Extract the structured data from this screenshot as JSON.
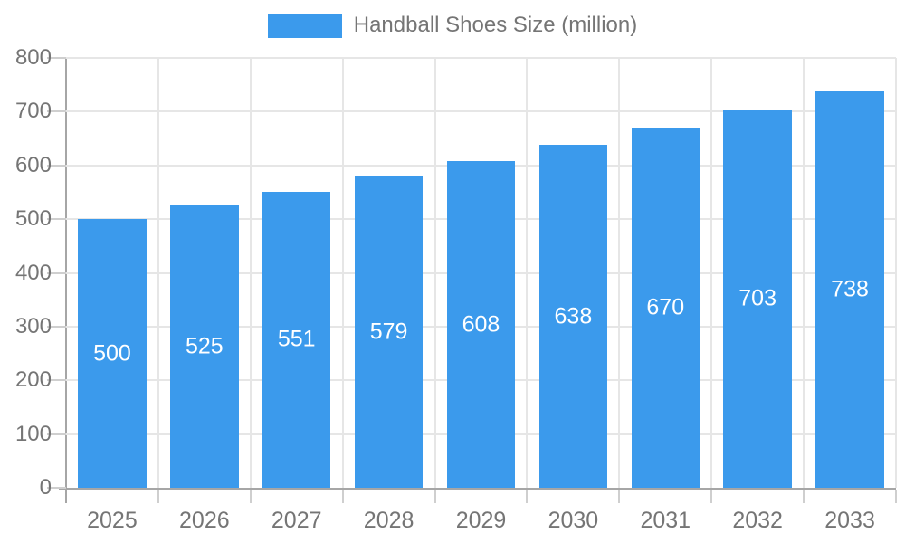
{
  "chart_data": {
    "type": "bar",
    "title": "Handball Shoes Size (million)",
    "legend": {
      "label": "Handball Shoes Size (million)",
      "position": "top"
    },
    "categories": [
      "2025",
      "2026",
      "2027",
      "2028",
      "2029",
      "2030",
      "2031",
      "2032",
      "2033"
    ],
    "series": [
      {
        "name": "Handball Shoes Size (million)",
        "values": [
          500,
          525,
          551,
          579,
          608,
          638,
          670,
          703,
          738
        ]
      }
    ],
    "xlabel": "",
    "ylabel": "",
    "ylim": [
      0,
      800
    ],
    "y_ticks": [
      0,
      100,
      200,
      300,
      400,
      500,
      600,
      700,
      800
    ],
    "grid": true,
    "bar_value_labels": true
  },
  "colors": {
    "bar": "#3b9aec",
    "grid": "#e6e6e6",
    "axis": "#a6a6a6",
    "tick": "#cfcfcf",
    "text": "#757575",
    "value_label": "#ffffff",
    "background": "#ffffff"
  }
}
